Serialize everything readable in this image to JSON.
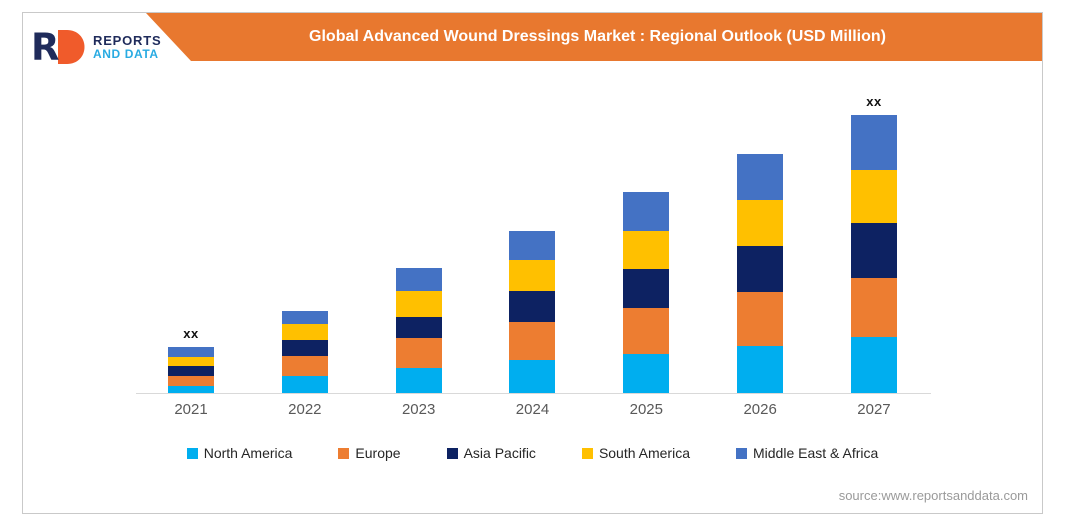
{
  "logo": {
    "line1": "REPORTS",
    "line2": "AND DATA",
    "mark_colors": {
      "r": "#1f2b5b",
      "d": "#f05b2b"
    }
  },
  "header": {
    "title": "Global Advanced Wound Dressings Market : Regional Outlook (USD Million)",
    "bg_color": "#e8782f",
    "text_color": "#ffffff"
  },
  "footer": {
    "source": "source:www.reportsanddata.com"
  },
  "chart_data": {
    "type": "bar",
    "stacked": true,
    "title": "Global Advanced Wound Dressings Market : Regional Outlook (USD Million)",
    "categories": [
      "2021",
      "2022",
      "2023",
      "2024",
      "2025",
      "2026",
      "2027"
    ],
    "series": [
      {
        "name": "North America",
        "color": "#00aeef",
        "values": [
          7,
          17,
          25,
          33,
          39,
          47,
          56
        ]
      },
      {
        "name": "Europe",
        "color": "#ed7d31",
        "values": [
          10,
          20,
          30,
          38,
          46,
          54,
          59
        ]
      },
      {
        "name": "Asia Pacific",
        "color": "#0d2262",
        "values": [
          10,
          16,
          21,
          31,
          39,
          46,
          55
        ]
      },
      {
        "name": "South America",
        "color": "#ffc000",
        "values": [
          9,
          16,
          26,
          31,
          38,
          46,
          53
        ]
      },
      {
        "name": "Middle East & Africa",
        "color": "#4472c4",
        "values": [
          10,
          13,
          23,
          29,
          39,
          46,
          55
        ]
      }
    ],
    "units": "relative height (actual values masked as 'xx' in source image)",
    "bar_value_labels": [
      {
        "category": "2021",
        "label": "xx"
      },
      {
        "category": "2027",
        "label": "xx"
      }
    ],
    "legend_position": "bottom",
    "grid": false,
    "y_axis_visible": false,
    "axis_color": "#d9d9d9",
    "category_label_color": "#595959"
  }
}
